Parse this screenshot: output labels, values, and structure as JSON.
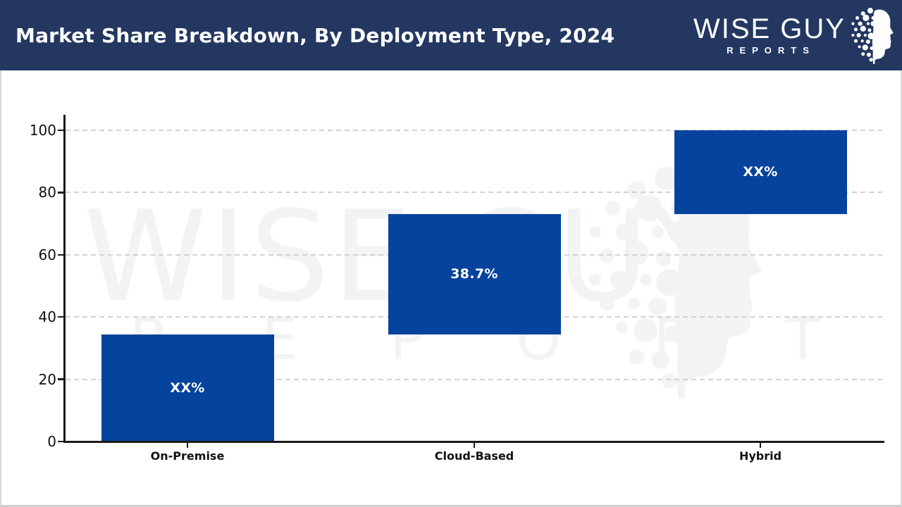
{
  "header": {
    "title": "Market Share Breakdown, By Deployment Type, 2024",
    "logo": {
      "line1": "WISE GUY",
      "line2": "REPORTS"
    }
  },
  "watermark": {
    "line1": "WISE GUY",
    "line2": "R E P O R T S"
  },
  "colors": {
    "header_bg": "#233760",
    "bar": "#05439c",
    "grid": "#d2d2d2",
    "axis": "#1a1a1a",
    "watermark": "#f2f3f5",
    "title_text": "#ffffff",
    "bar_label_text": "#ffffff"
  },
  "chart_data": {
    "type": "bar",
    "subtype": "floating-segment-waterfall",
    "title": "Market Share Breakdown, By Deployment Type, 2024",
    "categories": [
      "On-Premise",
      "Cloud-Based",
      "Hybrid"
    ],
    "segments": [
      {
        "category": "On-Premise",
        "start": 0,
        "end": 34.4,
        "value": 34.4,
        "label": "XX%"
      },
      {
        "category": "Cloud-Based",
        "start": 34.4,
        "end": 73.1,
        "value": 38.7,
        "label": "38.7%"
      },
      {
        "category": "Hybrid",
        "start": 73.1,
        "end": 100,
        "value": 26.9,
        "label": "XX%"
      }
    ],
    "yticks": [
      0,
      20,
      40,
      60,
      80,
      100
    ],
    "ylim": [
      0,
      100
    ],
    "xlabel": "",
    "ylabel": "",
    "grid": "horizontal-dashed",
    "legend": "none"
  }
}
